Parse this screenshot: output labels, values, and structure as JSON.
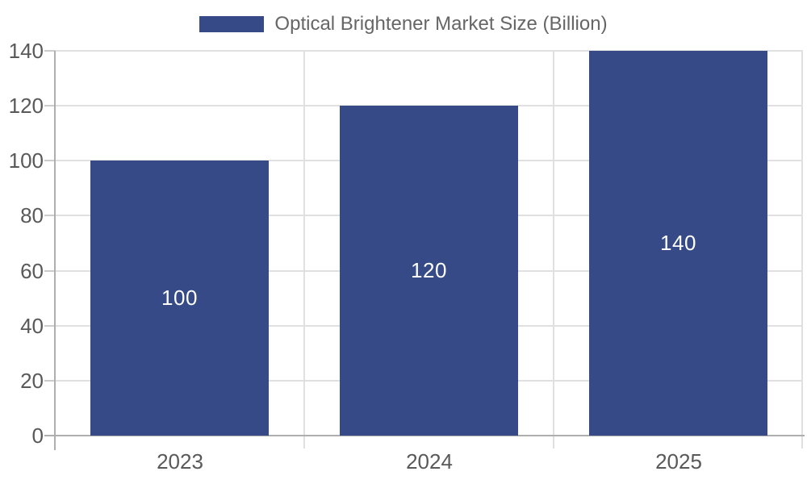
{
  "chart_data": {
    "type": "bar",
    "title": "Optical Brightener Market Size (Billion)",
    "categories": [
      "2023",
      "2024",
      "2025"
    ],
    "series": [
      {
        "name": "Optical Brightener Market Size (Billion)",
        "values": [
          100,
          120,
          140
        ]
      }
    ],
    "bar_value_labels": [
      "100",
      "120",
      "140"
    ],
    "xlabel": "",
    "ylabel": "",
    "ylim": [
      0,
      140
    ],
    "yticks": [
      0,
      20,
      40,
      60,
      80,
      100,
      120,
      140
    ],
    "grid": true,
    "legend_position": "top-center",
    "value_label_position": "inside-center"
  },
  "style": {
    "bar_color": "#374a88",
    "grid_color": "#e0e0e0",
    "axis_line_color": "#aeaeae",
    "tick_color": "#cccccc",
    "axis_text_color": "#595959",
    "legend_text_color": "#666666",
    "bar_label_color": "#ffffff",
    "background_color": "#ffffff"
  }
}
